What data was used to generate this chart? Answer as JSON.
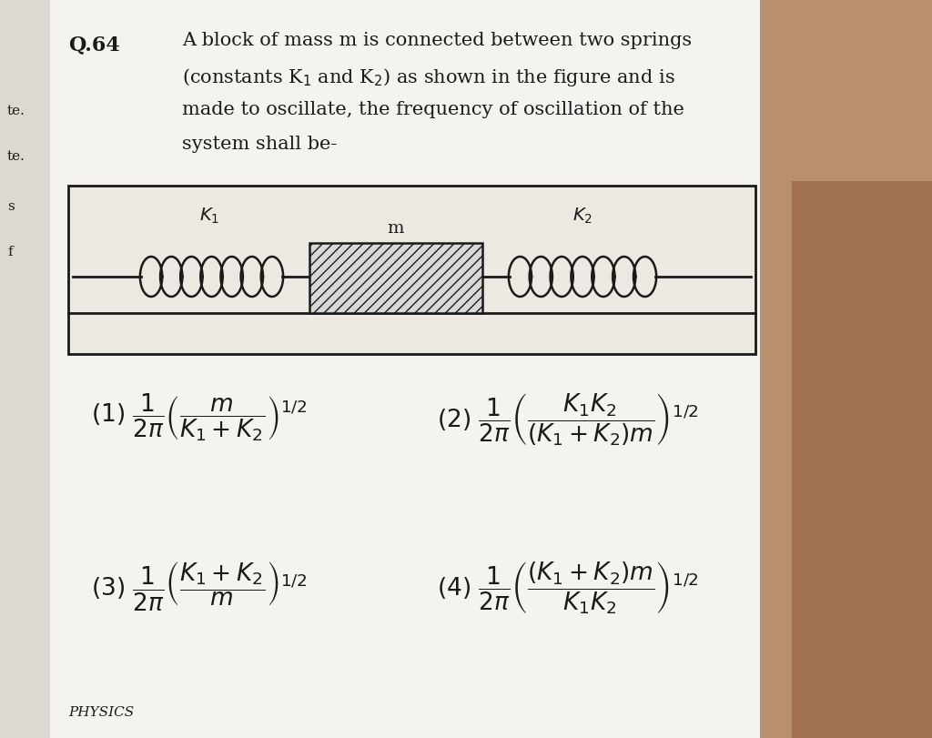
{
  "background_color": "#f0ede8",
  "text_color": "#1a1a1a",
  "spring_color": "#1a1a1a",
  "box_hatch_color": "#1a1a1a",
  "box_fill_color": "#e0e0e0",
  "wall_color": "#1a1a1a",
  "figure_bg": "#e8e4de",
  "diagram_border_color": "#1a1a1a",
  "hand_color": "#c8a080",
  "question_num": "Q.64",
  "q_line1": "A block of mass m is connected between two springs",
  "q_line2": "(constants K",
  "q_line3": "made to oscillate, the frequency of oscillation of the",
  "q_line4": "system shall be-",
  "left_labels": [
    "te.",
    "te.",
    "s",
    "f"
  ],
  "bottom_label": "PHYSICS"
}
